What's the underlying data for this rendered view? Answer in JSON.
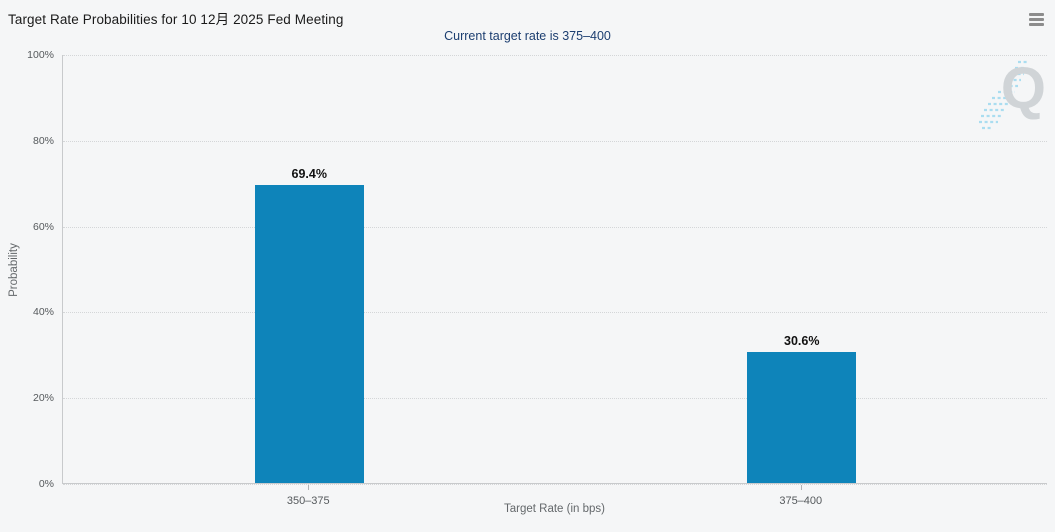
{
  "header": {
    "title": "Target Rate Probabilities for 10 12月 2025 Fed Meeting",
    "subtitle": "Current target rate is 375–400"
  },
  "watermark": {
    "letter": "Q"
  },
  "chart_data": {
    "type": "bar",
    "title": "Target Rate Probabilities for 10 12月 2025 Fed Meeting",
    "subtitle": "Current target rate is 375–400",
    "categories": [
      "350–375",
      "375–400"
    ],
    "values": [
      69.4,
      30.6
    ],
    "value_labels": [
      "69.4%",
      "30.6%"
    ],
    "xlabel": "Target Rate (in bps)",
    "ylabel": "Probability",
    "ylim": [
      0,
      100
    ],
    "yticks": [
      0,
      20,
      40,
      60,
      80,
      100
    ],
    "ytick_labels": [
      "0%",
      "20%",
      "40%",
      "60%",
      "80%",
      "100%"
    ],
    "bar_color": "#0e84ba",
    "grid": "horizontal-dotted",
    "legend": "none",
    "background": "#f5f6f7"
  },
  "colors": {
    "bar": "#0e84ba",
    "subtitle": "#1c3e70",
    "background": "#f5f6f7",
    "axis_line": "#c8cacc",
    "grid_dots": "#d4d6d8",
    "watermark_gray": "#d0d4d7",
    "watermark_blue": "#aaddf0",
    "menu_icon": "#8c8c8c"
  }
}
